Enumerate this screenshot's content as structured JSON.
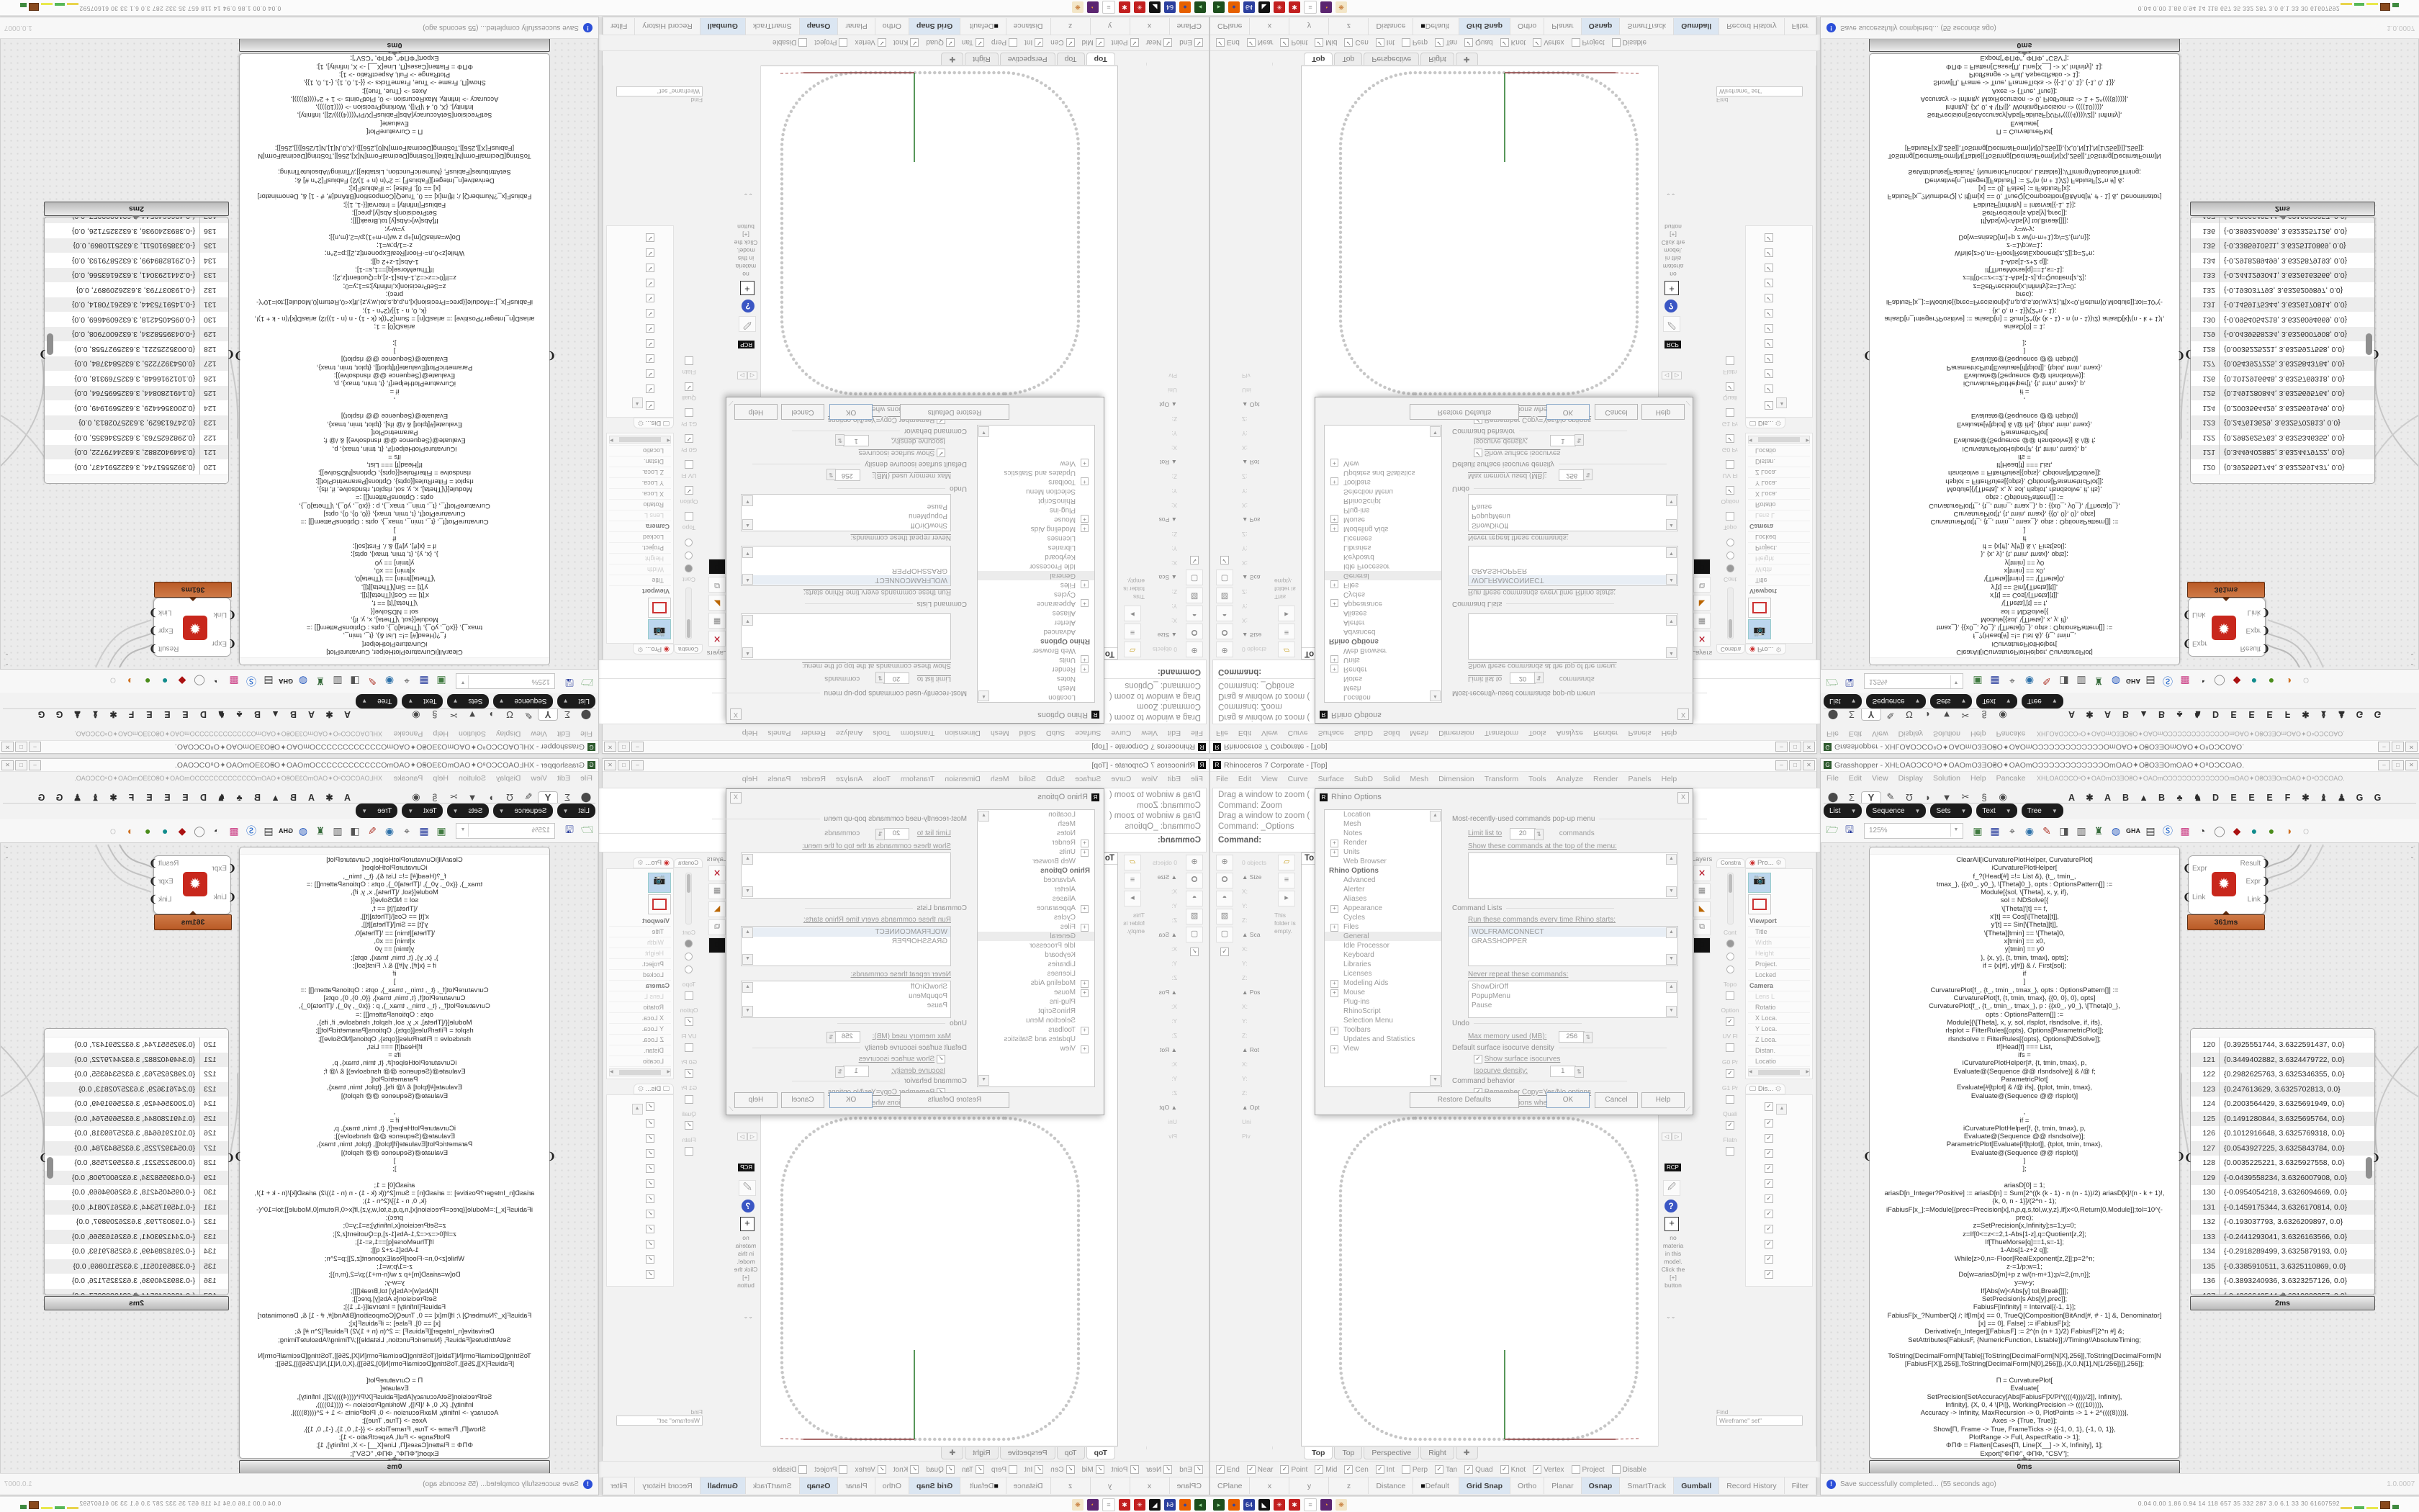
{
  "rhino": {
    "title": "Rhinoceros 7 Corporate - [Top]",
    "menus": [
      "File",
      "Edit",
      "View",
      "Curve",
      "Surface",
      "SubD",
      "Solid",
      "Mesh",
      "Dimension",
      "Transform",
      "Tools",
      "Analyze",
      "Render",
      "Panels",
      "Help"
    ],
    "command_lines": [
      "Drag a window to zoom (",
      "Command: Zoom",
      "Drag a window to zoom (",
      "Command: _Options"
    ],
    "command_prompt": "Command:",
    "viewport_label": "Top",
    "viewport_tabs": [
      {
        "label": "Top",
        "active": true
      },
      {
        "label": "Top"
      },
      {
        "label": "Perspective"
      },
      {
        "label": "Right"
      },
      {
        "label": "✚"
      }
    ],
    "axis_colors": {
      "x_axis": "#8b3a3a",
      "y_axis": "#2e7d32",
      "curve_dots": "#c7c7c7"
    },
    "left_dock_labels": [
      "0 objects",
      "▲ Size",
      "X:",
      "Y:",
      "Z:",
      "▲ Sca",
      "X:",
      "Y:",
      "Z:",
      "▲ Pos",
      "X:",
      "Y:",
      "Z:",
      "▲ Rot",
      "X:",
      "Y:",
      "Z:",
      "▲ Opt",
      "Uni",
      "Piv"
    ],
    "libraries_text": "This folder is empty.",
    "layers_title": "Layers",
    "constraints_tab": "Constra",
    "constraints_labels": [
      "Cont",
      "Topo",
      "Option",
      "UV Fl",
      "G0 Pr",
      "G1 Pr",
      "Quali",
      "Flatn"
    ],
    "properties_tab": "Pro...",
    "properties_rows": [
      {
        "label": "Viewport",
        "bold": true
      },
      {
        "label": "Title"
      },
      {
        "label": "Width",
        "muted": true
      },
      {
        "label": "Height",
        "muted": true
      },
      {
        "label": "Project."
      },
      {
        "label": "Locked"
      },
      {
        "label": "Camera",
        "bold": true
      },
      {
        "label": "Lens L",
        "muted": true
      },
      {
        "label": "Rotatio"
      },
      {
        "label": "X Loca."
      },
      {
        "label": "Y Loca."
      },
      {
        "label": "Z Loca."
      },
      {
        "label": "Distan."
      },
      {
        "label": "Locatio"
      }
    ],
    "display_tab": "Dis...",
    "display_checkbox_count": 12,
    "materials_note": "no materia in this model. Click the [+] button",
    "rcp_label": "RCP",
    "find_label": "Find",
    "find_value": "Wireframe\" set\"",
    "osnap": [
      {
        "label": "End",
        "checked": true
      },
      {
        "label": "Near",
        "checked": true
      },
      {
        "label": "Point",
        "checked": true
      },
      {
        "label": "Mid",
        "checked": true
      },
      {
        "label": "Cen",
        "checked": true
      },
      {
        "label": "Int",
        "checked": true
      },
      {
        "label": "Perp",
        "checked": false
      },
      {
        "label": "Tan",
        "checked": true
      },
      {
        "label": "Quad",
        "checked": true
      },
      {
        "label": "Knot",
        "checked": true
      },
      {
        "label": "Vertex",
        "checked": true
      },
      {
        "label": "Project",
        "checked": false
      },
      {
        "label": "Disable",
        "checked": false
      }
    ],
    "status_panes": [
      "CPlane",
      "x",
      "y",
      "z",
      "Distance"
    ],
    "status_default": "Default",
    "status_toggles": [
      {
        "label": "Grid Snap",
        "on": true
      },
      {
        "label": "Ortho",
        "on": false
      },
      {
        "label": "Planar",
        "on": false
      },
      {
        "label": "Osnap",
        "on": true
      },
      {
        "label": "SmartTrack",
        "on": false
      },
      {
        "label": "Gumball",
        "on": true
      },
      {
        "label": "Record History",
        "on": false
      },
      {
        "label": "Filter",
        "on": false
      }
    ],
    "dialog": {
      "title": "Rhino Options",
      "tree": [
        {
          "label": "Location"
        },
        {
          "label": "Mesh"
        },
        {
          "label": "Notes"
        },
        {
          "label": "Render",
          "plus": true
        },
        {
          "label": "Units",
          "plus": true
        },
        {
          "label": "Web Browser"
        },
        {
          "label": "Rhino Options",
          "header": true
        },
        {
          "label": "Advanced"
        },
        {
          "label": "Alerter"
        },
        {
          "label": "Aliases"
        },
        {
          "label": "Appearance",
          "plus": true
        },
        {
          "label": "Cycles"
        },
        {
          "label": "Files",
          "plus": true
        },
        {
          "label": "General",
          "selected": true
        },
        {
          "label": "Idle Processor"
        },
        {
          "label": "Keyboard"
        },
        {
          "label": "Libraries"
        },
        {
          "label": "Licenses"
        },
        {
          "label": "Modeling Aids",
          "plus": true
        },
        {
          "label": "Mouse",
          "plus": true
        },
        {
          "label": "Plug-ins"
        },
        {
          "label": "RhinoScript"
        },
        {
          "label": "Selection Menu"
        },
        {
          "label": "Toolbars",
          "plus": true
        },
        {
          "label": "Updates and Statistics"
        },
        {
          "label": "View",
          "plus": true
        }
      ],
      "mru_group": "Most-recently-used commands pop-up menu",
      "limit_label": "Limit list to",
      "limit_value": "20",
      "limit_suffix": "commands",
      "show_label": "Show these commands at the top of the menu:",
      "cmdlists_group": "Command Lists",
      "run_label": "Run these commands every time Rhino starts:",
      "run_items": [
        "WOLFRAMCONNECT",
        "GRASSHOPPER"
      ],
      "never_label": "Never repeat these commands:",
      "never_items": [
        "ShowDirOff",
        "PopupMenu",
        "Pause"
      ],
      "undo_group": "Undo",
      "undo_label": "Max memory used (MB):",
      "undo_value": "256",
      "iso_group": "Default surface isocurve density",
      "iso_check": "Show surface isocurves",
      "iso_label": "Isocurve density:",
      "iso_value": "1",
      "beh_group": "Command behavior",
      "beh_check1": "Remember Copy=Yes/No options",
      "beh_check2": "Use extrusions when possible",
      "btn_restore": "Restore Defaults",
      "btn_ok": "OK",
      "btn_cancel": "Cancel",
      "btn_help": "Help"
    }
  },
  "gh": {
    "title": "Grasshopper - XHĿOAOƆCO⁸O✦OAOmO3ƎO₴O✦OAOmOƆƆƆƆƆƆƆƆƆƆƆƆOmOAO✦O₴O3ƎOmOAO✦O⁸OƆCOAO.",
    "menus": [
      "File",
      "Edit",
      "View",
      "Display",
      "Solution",
      "Help",
      "Pancake"
    ],
    "title_echo": "XHĿOAOƆCO⁸O✦OAOmO3ƎO₴O✦OAOmOƆƆƆƆƆƆƆƆƆƆƆƆOmOAO✦O₴O3ƎOmOAO✦O⁸OƆCOAO.",
    "tab_icons": [
      "⬤",
      "Σ",
      "Y",
      "✎",
      "Ʊ",
      "◗",
      "▼",
      "✂",
      "§",
      "◉"
    ],
    "tab_selected_index": 2,
    "tab_letters": [
      "A",
      "✱",
      "A",
      "B",
      "▲",
      "B",
      "♣",
      "♞",
      "D",
      "E",
      "E",
      "E",
      "F",
      "✱",
      "♝",
      "♟",
      "G",
      "G"
    ],
    "pills": [
      "List",
      "Sequence",
      "Sets",
      "Text",
      "Tree"
    ],
    "zoom_value": "125%",
    "toolbar_icons": [
      {
        "g": "▣",
        "c": "#3f7a3f"
      },
      {
        "g": "▦",
        "c": "#2b3f9e"
      },
      {
        "g": "⌖",
        "c": "#444"
      },
      {
        "g": "◉",
        "c": "#2b6fa8"
      },
      {
        "g": "✎",
        "c": "#b03a2e"
      },
      {
        "g": "◨",
        "c": "#555"
      },
      {
        "g": "▥",
        "c": "#555"
      },
      {
        "g": "♜",
        "c": "#356a3a"
      },
      {
        "g": "◍",
        "c": "#2255bb"
      },
      {
        "g": "GHA",
        "c": "#222"
      },
      {
        "g": "▤",
        "c": "#444"
      },
      {
        "g": "Ⓢ",
        "c": "#2266cc"
      },
      {
        "g": "▩",
        "c": "#cc4488"
      },
      {
        "g": "◔",
        "c": "#333"
      },
      {
        "g": "◯",
        "c": "#888"
      },
      {
        "g": "◆",
        "c": "#aa1111"
      },
      {
        "g": "●",
        "c": "#118c8c"
      },
      {
        "g": "●",
        "c": "#4a8c1a"
      },
      {
        "g": "◑",
        "c": "#d07020"
      },
      {
        "g": "◌",
        "c": "#777"
      }
    ],
    "component": {
      "inputs": [
        "Expr",
        "Link"
      ],
      "outputs": [
        "Result",
        "Expr",
        "Link"
      ],
      "time": "361ms",
      "icon_color": "#c8271c"
    },
    "code_time": "0ms",
    "list_time": "2ms",
    "status_text": "Save successfully completed... (55 seconds ago)",
    "version": "1.0.0007",
    "code_lines": [
      "ClearAll[iCurvaturePlotHelper, CurvaturePlot]",
      "iCurvaturePlotHelper[",
      "f_?(Head[#] =!= List &), {t_, tmin_,",
      "tmax_}, {{x0_, y0_}, \\[Theta]0_}, opts : OptionsPattern[]] :=",
      "Module[{sol, \\[Theta], x, y, if},",
      "sol = NDSolve[{",
      "\\[Theta]'[t] == f,",
      "x'[t] == Cos[\\[Theta][t]],",
      "y'[t] == Sin[\\[Theta][t]],",
      "\\[Theta][tmin] == \\[Theta]0,",
      "x[tmin] == x0,",
      "y[tmin] == y0",
      "}, {x, y}, {t, tmin, tmax}, opts];",
      "if = {x[#], y[#]} & /. First[sol];",
      "if",
      "]",
      "CurvaturePlot[f_, {t_, tmin_, tmax_}, opts : OptionsPattern[]] :=",
      "CurvaturePlot[f, {t, tmin, tmax}, {{0, 0}, 0}, opts]",
      "CurvaturePlot[f_, {t_, tmin_, tmax_}, p : {{x0_, y0_}, \\[Theta]0_},",
      "opts : OptionsPattern[]] :=",
      "Module[{\\[Theta], x, y, sol, rlsplot, rlsndsolve, if, ifs},",
      "rlsplot = FilterRules[{opts}, Options[ParametricPlot]];",
      "rlsndsolve = FilterRules[{opts}, Options[NDSolve]];",
      "If[Head[f] === List,",
      "ifs =",
      "iCurvaturePlotHelper[#, {t, tmin, tmax}, p,",
      "Evaluate@(Sequence @@ rlsndsolve)] & /@ f;",
      "ParametricPlot[",
      "Evaluate[#[tplot] & /@ ifs], {tplot, tmin, tmax},",
      "Evaluate@(Sequence @@ rlsplot)]",
      "",
      ",",
      "if =",
      "iCurvaturePlotHelper[f, {t, tmin, tmax}, p,",
      "Evaluate@(Sequence @@ rlsndsolve)];",
      "ParametricPlot[Evaluate[if[tplot]], {tplot, tmin, tmax},",
      "Evaluate@(Sequence @@ rlsplot)]",
      "]",
      "];",
      "",
      "ariasD[0] = 1;",
      "ariasD[n_Integer?Positive] := ariasD[n] = Sum[2^((k (k - 1) - n (n - 1))/2) ariasD[k]/(n - k + 1)!,",
      "{k, 0, n - 1}]/(2^n - 1);",
      "iFabiusF[x_]:=Module[{prec=Precision[x],n,p,q,s,tol,w,y,z},If[x<0,Return[0,Module]];tol=10^(-",
      "prec);",
      "z=SetPrecision[x,Infinity];s=1;y=0;",
      "z=If[0<=z<=2,1-Abs[1-z],q=Quotient[z,2];",
      "If[ThueMorse[q]==1,s=-1];",
      "1-Abs[1-z+2 q]];",
      "While[z>0,n=-Floor[RealExponent[z,2]];p=2^n;",
      "z-=1/p;w=1;",
      "Do[w=ariasD[m]+p z w/(n-m+1);p/=2,{m,n}];",
      "y=w-y;",
      "If[Abs[w]<Abs[y] tol,Break[]]];",
      "SetPrecision[s Abs[y],prec]];",
      "FabiusF[Infinity] = Interval[{-1, 1}];",
      "FabiusF[x_?NumberQ] /; If[Im[x] == 0, TrueQ[Composition[BitAnd[#, # - 1] &, Denominator]",
      "[x] == 0], False] := iFabiusF[x];",
      "Derivative[n_Integer][FabiusF] := 2^(n (n + 1)/2) FabiusF[2^n #] &;",
      "SetAttributes[FabiusF, {NumericFunction, Listable}];//Timing//AbsoluteTiming;",
      "",
      "ToString[DecimalForm[N[Table[{ToString[DecimalForm[N[X],256]],ToString[DecimalForm[N",
      "[FabiusF[X]],256]],ToString[DecimalForm[N[0],256]]},{X,0,N[1],N[1/256]}]],256]];",
      "",
      "Π = CurvaturePlot[",
      "Evaluate[",
      "SetPrecision[SetAccuracy[Abs[FabiusF[X/Pi*((((4))))/2]], Infinity],",
      "Infinity], {X, 0, 4 \\[Pi]}, WorkingPrecision -> ((((10)))),",
      "Accuracy -> Infinity, MaxRecursion -> 0, PlotPoints -> 1 + 2^((((8))))],",
      "Axes -> {True, True}];",
      "Show[Π, Frame -> True, FrameTicks -> {{-1, 0, 1}, {-1, 0, 1}},",
      "PlotRange -> Full, AspectRatio -> 1];",
      "ΦΠΦ = Flatten[Cases[Π, Line[X__] -> X, Infinity], 1];",
      "Export[\"ΦΠΦ\", ΦΠΦ, \"CSV\"];",
      "ΦΠΦ"
    ],
    "list_rows": [
      {
        "i": "120",
        "v": "{0.3925551744, 3.6322591437, 0.0}"
      },
      {
        "i": "121",
        "v": "{0.3449402882, 3.6324479722, 0.0}"
      },
      {
        "i": "122",
        "v": "{0.2982625763, 3.6325346355, 0.0}"
      },
      {
        "i": "123",
        "v": "{0.247613629, 3.6325702813, 0.0}"
      },
      {
        "i": "124",
        "v": "{0.2003564429, 3.6325691949, 0.0}"
      },
      {
        "i": "125",
        "v": "{0.1491280844, 3.6325695764, 0.0}"
      },
      {
        "i": "126",
        "v": "{0.1012916648, 3.6325769318, 0.0}"
      },
      {
        "i": "127",
        "v": "{0.0543927225, 3.6325843784, 0.0}"
      },
      {
        "i": "128",
        "v": "{0.0035225221, 3.6325927558, 0.0}"
      },
      {
        "i": "129",
        "v": "{-0.0439558234, 3.6326007908, 0.0}"
      },
      {
        "i": "130",
        "v": "{-0.0954054218, 3.6326094669, 0.0}"
      },
      {
        "i": "131",
        "v": "{-0.1459175344, 3.6326170814, 0.0}"
      },
      {
        "i": "132",
        "v": "{-0.193037793, 3.6326209897, 0.0}"
      },
      {
        "i": "133",
        "v": "{-0.2441293041, 3.6326163566, 0.0}"
      },
      {
        "i": "134",
        "v": "{-0.2918289499, 3.6325879193, 0.0}"
      },
      {
        "i": "135",
        "v": "{-0.3385910511, 3.6325110869, 0.0}"
      },
      {
        "i": "136",
        "v": "{-0.3893240936, 3.6323257126, 0.0}"
      },
      {
        "i": "137",
        "v": "{-0.4366640544, 3.6319882257, 0.0}"
      }
    ]
  },
  "taskbar": {
    "icons": [
      {
        "g": "▸",
        "bg": "#1d4f1d",
        "fg": "#9fdf9f"
      },
      {
        "g": "●",
        "bg": "#e66000",
        "fg": "#35459e"
      },
      {
        "g": "64",
        "bg": "#2b3f9e",
        "fg": "#ffffff"
      },
      {
        "g": "◣",
        "bg": "#111111",
        "fg": "#ffffff"
      },
      {
        "g": "✳",
        "bg": "#c21f1f",
        "fg": "#ffffff"
      },
      {
        "g": "✱",
        "bg": "#c21f1f",
        "fg": "#ffffff"
      },
      {
        "g": "≡",
        "bg": "#ffffff",
        "fg": "#9a9a9a"
      },
      {
        "g": "◔",
        "bg": "#5b2570",
        "fg": "#f0a030"
      },
      {
        "g": "❋",
        "bg": "#f3e6c8",
        "fg": "#c2702a"
      }
    ],
    "tray_text": "0.04 0.00 1.86 0.94  14  118 657  35  332 287  3.0  6.1  33  30 61607592"
  }
}
